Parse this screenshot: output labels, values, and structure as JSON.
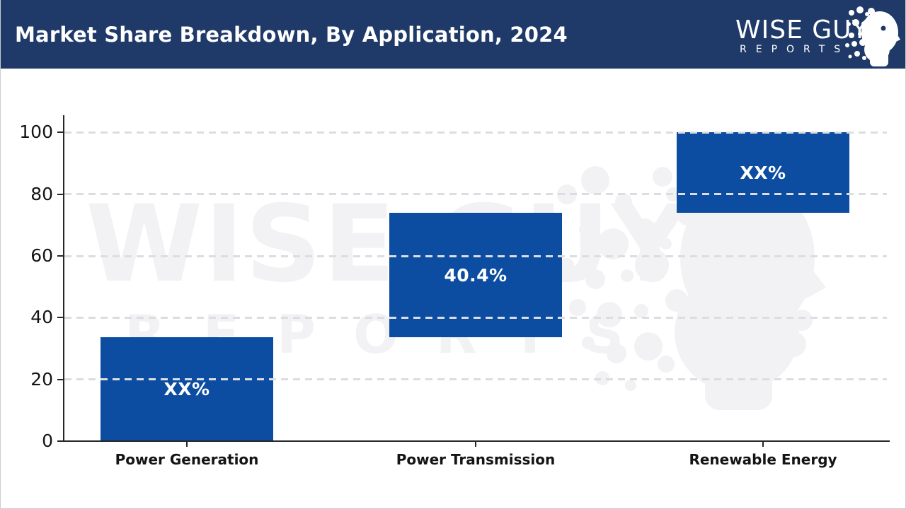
{
  "header": {
    "title": "Market Share Breakdown, By Application, 2024",
    "background": "#1f3a68"
  },
  "brand": {
    "name": "WISE GUY",
    "subtitle": "REPORTS",
    "face_icon": "dotted-head-profile"
  },
  "watermark": {
    "line1": "WISE GUY",
    "line2": "REPORTS",
    "face_icon": "dotted-head-profile"
  },
  "chart_data": {
    "type": "bar",
    "variant": "floating-stacked-segments",
    "title": "Market Share Breakdown, By Application, 2024",
    "categories": [
      "Power Generation",
      "Power Transmission",
      "Renewable Energy"
    ],
    "bars": [
      {
        "category": "Power Generation",
        "from": 0,
        "to": 33.6,
        "label": "XX%"
      },
      {
        "category": "Power Transmission",
        "from": 33.6,
        "to": 74,
        "label": "40.4%"
      },
      {
        "category": "Renewable Energy",
        "from": 74,
        "to": 100,
        "label": "XX%"
      }
    ],
    "ylim": [
      0,
      100
    ],
    "yticks": [
      0,
      20,
      40,
      60,
      80,
      100
    ],
    "xlabel": "",
    "ylabel": "",
    "grid": "horizontal-dashed",
    "legend": "none",
    "bar_color": "#0c4da2",
    "bar_label_color": "#ffffff",
    "axis_color": "#262626",
    "grid_color": "#dcdde0",
    "tick_label_color": "#141414"
  }
}
